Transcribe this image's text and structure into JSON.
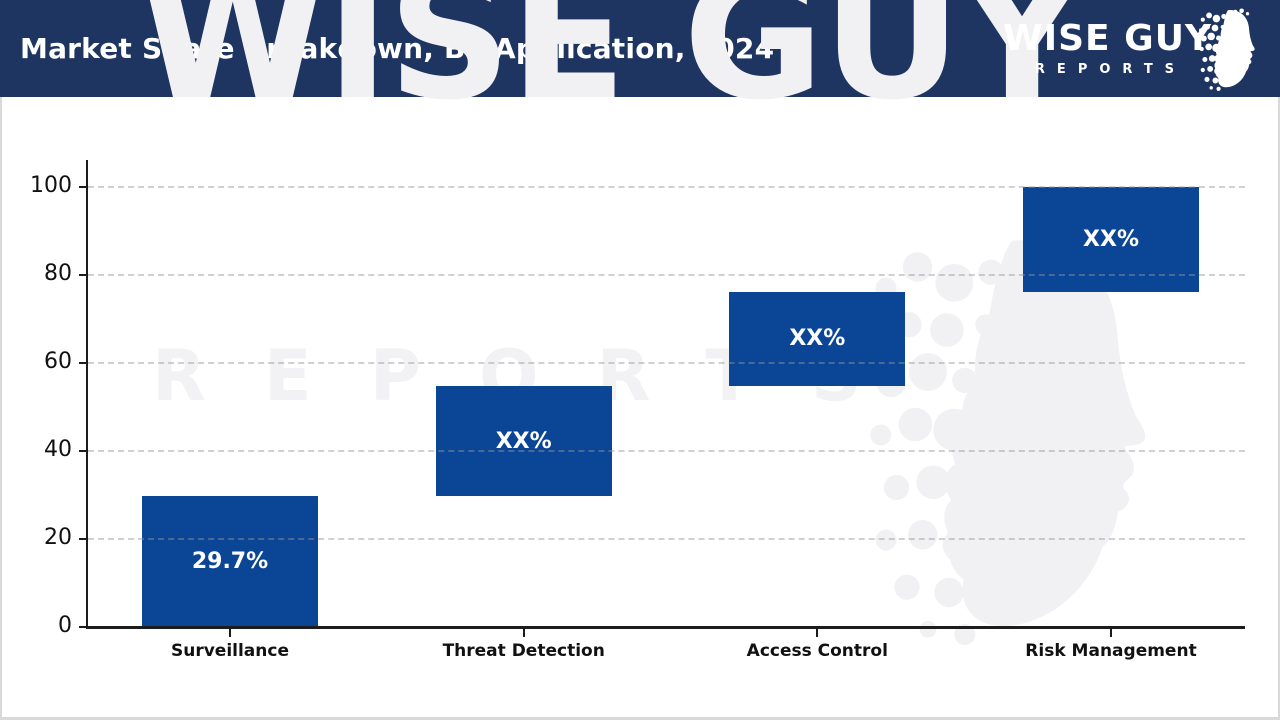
{
  "header": {
    "title": "Market Share Breakdown, By Application, 2024",
    "logo": {
      "wordmark": "WISE GUY",
      "sub": "REPORTS"
    }
  },
  "watermark": {
    "wordmark": "WISE GUY",
    "sub": "REPORTS"
  },
  "colors": {
    "header_bg": "#1e3461",
    "bar": "#0b4596",
    "bar_label": "#ffffff",
    "axis": "#1c1c1c",
    "grid": "#d0d0d0",
    "watermark": "#f1f1f4",
    "frame_border": "#d9d9d9"
  },
  "chart_data": {
    "type": "bar",
    "subtype": "waterfall",
    "title": "Market Share Breakdown, By Application, 2024",
    "categories": [
      "Surveillance",
      "Threat Detection",
      "Access Control",
      "Risk Management"
    ],
    "series": [
      {
        "name": "Market share segment",
        "segments": [
          {
            "start": 0,
            "end": 29.7
          },
          {
            "start": 29.7,
            "end": 54.8
          },
          {
            "start": 54.8,
            "end": 76.2
          },
          {
            "start": 76.2,
            "end": 100
          }
        ]
      }
    ],
    "value_labels": [
      "29.7%",
      "XX%",
      "XX%",
      "XX%"
    ],
    "xlabel": "",
    "ylabel": "",
    "yticks": [
      0,
      20,
      40,
      60,
      80,
      100
    ],
    "ylim": [
      0,
      105
    ],
    "grid": "horizontal-dashed",
    "legend": "none"
  }
}
